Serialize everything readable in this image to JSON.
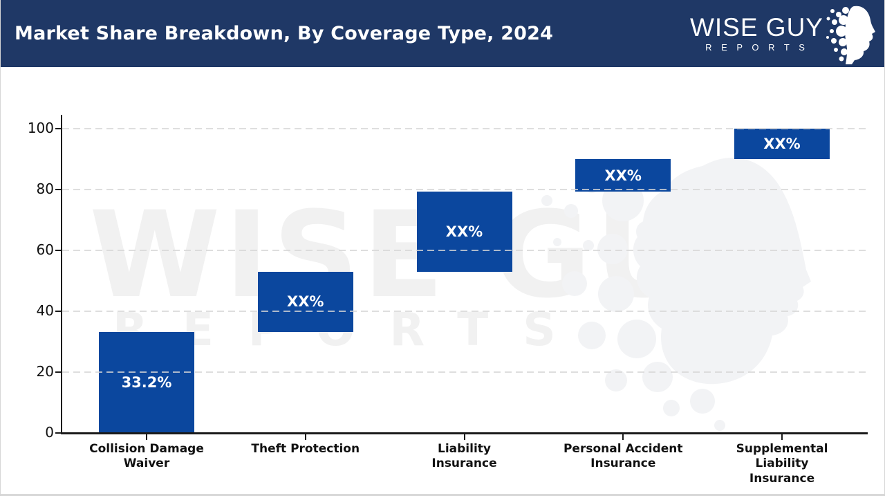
{
  "header": {
    "title": "Market Share Breakdown, By Coverage Type, 2024",
    "brand_name": "WISE GUY",
    "brand_sub": "R E P O R T S",
    "bg_color": "#1f3866"
  },
  "watermark": {
    "line1": "WISE GUY",
    "line2": "REPORTS"
  },
  "chart_data": {
    "type": "bar",
    "subtype": "waterfall",
    "title": "Market Share Breakdown, By Coverage Type, 2024",
    "categories": [
      "Collision Damage\nWaiver",
      "Theft Protection",
      "Liability\nInsurance",
      "Personal Accident\nInsurance",
      "Supplemental\nLiability\nInsurance"
    ],
    "segments": [
      {
        "category": "Collision Damage Waiver",
        "start": 0,
        "end": 33.2,
        "label": "33.2%"
      },
      {
        "category": "Theft Protection",
        "start": 33.2,
        "end": 53,
        "label": "XX%"
      },
      {
        "category": "Liability Insurance",
        "start": 53,
        "end": 79.3,
        "label": "XX%"
      },
      {
        "category": "Personal Accident Insurance",
        "start": 79.3,
        "end": 90,
        "label": "XX%"
      },
      {
        "category": "Supplemental Liability Insurance",
        "start": 90,
        "end": 100,
        "label": "XX%"
      }
    ],
    "yticks": [
      0,
      20,
      40,
      60,
      80,
      100
    ],
    "ylim": [
      0,
      100
    ],
    "xlabel": "",
    "ylabel": "",
    "grid": "dashed-horizontal",
    "gridline_color": "#d9d9d9",
    "bar_color": "#0b479e",
    "bar_label_color": "#ffffff",
    "axis_color": "#1a1a1a",
    "legend": "none"
  }
}
